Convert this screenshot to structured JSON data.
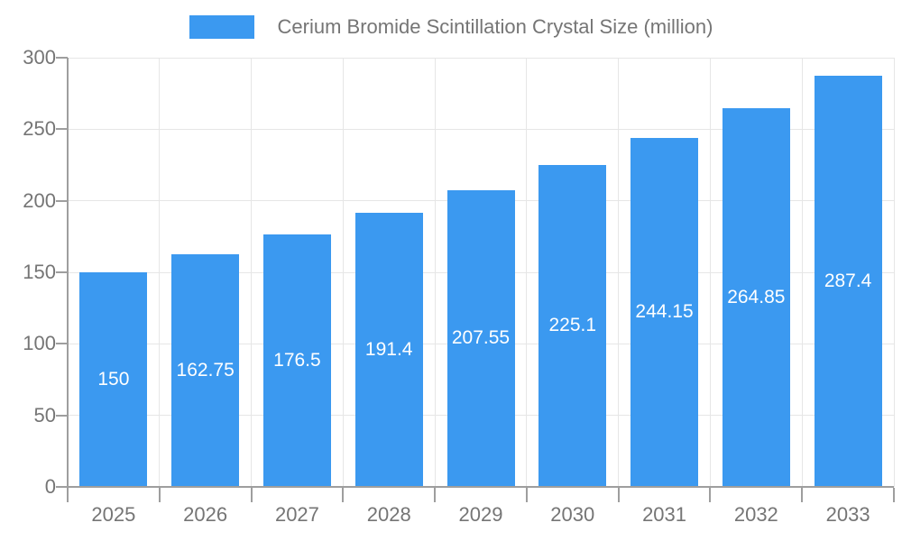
{
  "legend": {
    "label": "Cerium Bromide Scintillation Crystal Size (million)",
    "swatch_color": "#3B99F0"
  },
  "chart_data": {
    "type": "bar",
    "title": "Cerium Bromide Scintillation Crystal Size (million)",
    "categories": [
      "2025",
      "2026",
      "2027",
      "2028",
      "2029",
      "2030",
      "2031",
      "2032",
      "2033"
    ],
    "values": [
      150,
      162.75,
      176.5,
      191.4,
      207.55,
      225.1,
      244.15,
      264.85,
      287.4
    ],
    "data_labels": [
      "150",
      "162.75",
      "176.5",
      "191.4",
      "207.55",
      "225.1",
      "244.15",
      "264.85",
      "287.4"
    ],
    "xlabel": "",
    "ylabel": "",
    "ylim": [
      0,
      300
    ],
    "yticks": [
      0,
      50,
      100,
      150,
      200,
      250,
      300
    ],
    "grid": true,
    "legend_position": "top",
    "colors": {
      "bar": "#3B99F0",
      "grid_line": "#E6E6E6",
      "axis_line": "#9E9E9E",
      "axis_text": "#757575",
      "data_label_text": "#FFFFFF",
      "background": "#FFFFFF"
    }
  }
}
